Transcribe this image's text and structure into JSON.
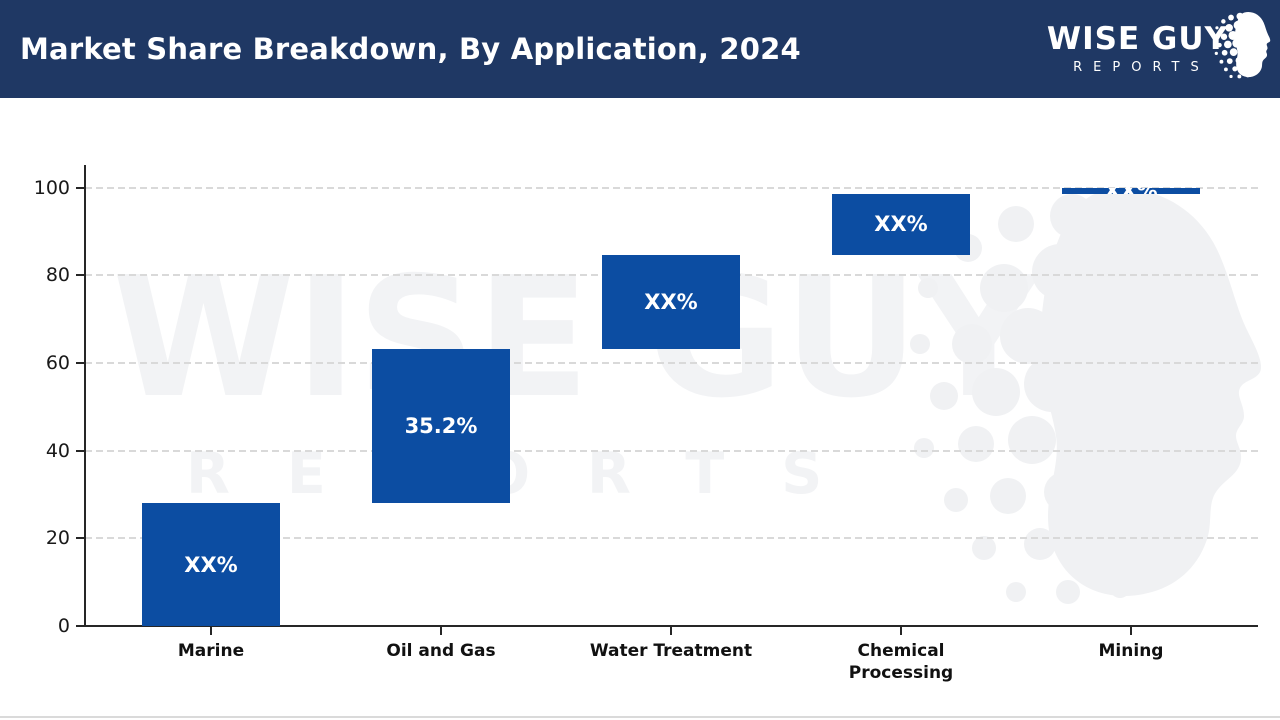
{
  "header": {
    "title": "Market Share Breakdown, By Application, 2024",
    "logo": {
      "brand": "WISE GUY",
      "sub": "REPORTS",
      "icon": "dotted-head-profile"
    }
  },
  "watermark": {
    "brand": "WISE GUY",
    "sub": "REPORTS"
  },
  "chart_data": {
    "type": "bar",
    "subtype": "waterfall",
    "title": "Market Share Breakdown, By Application, 2024",
    "categories": [
      "Marine",
      "Oil and Gas",
      "Water Treatment",
      "Chemical Processing",
      "Mining"
    ],
    "category_lines": [
      [
        "Marine"
      ],
      [
        "Oil and Gas"
      ],
      [
        "Water Treatment"
      ],
      [
        "Chemical",
        "Processing"
      ],
      [
        "Mining"
      ]
    ],
    "segments": [
      {
        "category": "Marine",
        "start": 0,
        "end": 28,
        "label": "XX%"
      },
      {
        "category": "Oil and Gas",
        "start": 28,
        "end": 63.2,
        "label": "35.2%"
      },
      {
        "category": "Water Treatment",
        "start": 63.2,
        "end": 84.7,
        "label": "XX%"
      },
      {
        "category": "Chemical Processing",
        "start": 84.7,
        "end": 98.6,
        "label": "XX%"
      },
      {
        "category": "Mining",
        "start": 98.6,
        "end": 100,
        "label": "XX%"
      }
    ],
    "xlabel": "",
    "ylabel": "",
    "yticks": [
      0,
      20,
      40,
      60,
      80,
      100
    ],
    "ylim": [
      0,
      105
    ],
    "grid": "horizontal-dashed",
    "legend": false,
    "colors": {
      "bar": "#0C4DA2",
      "bar_label": "#FFFFFF",
      "header_bg": "#1F3864",
      "gridline": "#D9D9D9",
      "axis": "#262626",
      "watermark": "#F2F3F5"
    }
  }
}
